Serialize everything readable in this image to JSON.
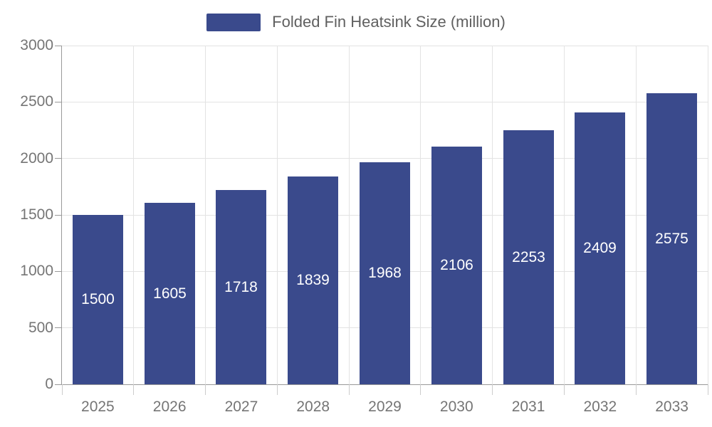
{
  "chart_data": {
    "type": "bar",
    "title": "",
    "legend": "Folded Fin Heatsink Size (million)",
    "legend_position": "top-center",
    "categories": [
      "2025",
      "2026",
      "2027",
      "2028",
      "2029",
      "2030",
      "2031",
      "2032",
      "2033"
    ],
    "series": [
      {
        "name": "Folded Fin Heatsink Size (million)",
        "values": [
          1500,
          1605,
          1718,
          1839,
          1968,
          2106,
          2253,
          2409,
          2575
        ]
      }
    ],
    "xlabel": "",
    "ylabel": "",
    "ylim": [
      0,
      3000
    ],
    "ytick_step": 500,
    "yticks": [
      0,
      500,
      1000,
      1500,
      2000,
      2500,
      3000
    ],
    "grid": true,
    "value_label_position": "inside-center",
    "colors": {
      "bar": "#3A4A8C",
      "grid_line": "#e3e3e3",
      "axis_line": "#999999",
      "x_tick": "#cccccc",
      "tick_text": "#757575",
      "legend_text": "#606060",
      "bar_value_text": "#ffffff",
      "background": "#ffffff"
    }
  }
}
